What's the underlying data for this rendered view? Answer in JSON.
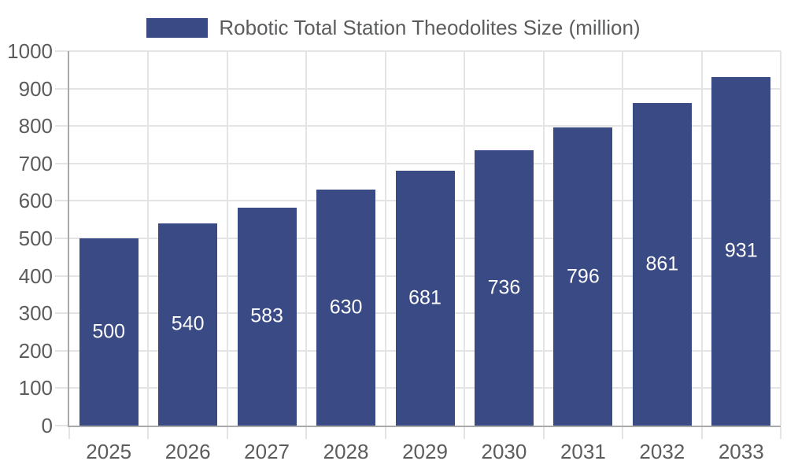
{
  "chart_data": {
    "type": "bar",
    "title": "Robotic Total Station Theodolites Size (million)",
    "legend": {
      "position": "top",
      "entries": [
        "Robotic Total Station Theodolites Size (million)"
      ]
    },
    "categories": [
      "2025",
      "2026",
      "2027",
      "2028",
      "2029",
      "2030",
      "2031",
      "2032",
      "2033"
    ],
    "series": [
      {
        "name": "Robotic Total Station Theodolites Size (million)",
        "values": [
          500,
          540,
          583,
          630,
          681,
          736,
          796,
          861,
          931
        ]
      }
    ],
    "bar_value_labels": [
      "500",
      "540",
      "583",
      "630",
      "681",
      "736",
      "796",
      "861",
      "931"
    ],
    "xlabel": "",
    "ylabel": "",
    "ylim": [
      0,
      1000
    ],
    "ytick_step": 100,
    "ytick_labels": [
      "0",
      "100",
      "200",
      "300",
      "400",
      "500",
      "600",
      "700",
      "800",
      "900",
      "1000"
    ],
    "grid": true,
    "colors": {
      "bar": "#3A4A85",
      "bar_label_text": "#ffffff",
      "axis_line": "#a9a9a9",
      "gridline": "#e4e4e6",
      "tick": "#e4e4e6",
      "text": "#5b5c5e",
      "background": "#ffffff"
    }
  }
}
